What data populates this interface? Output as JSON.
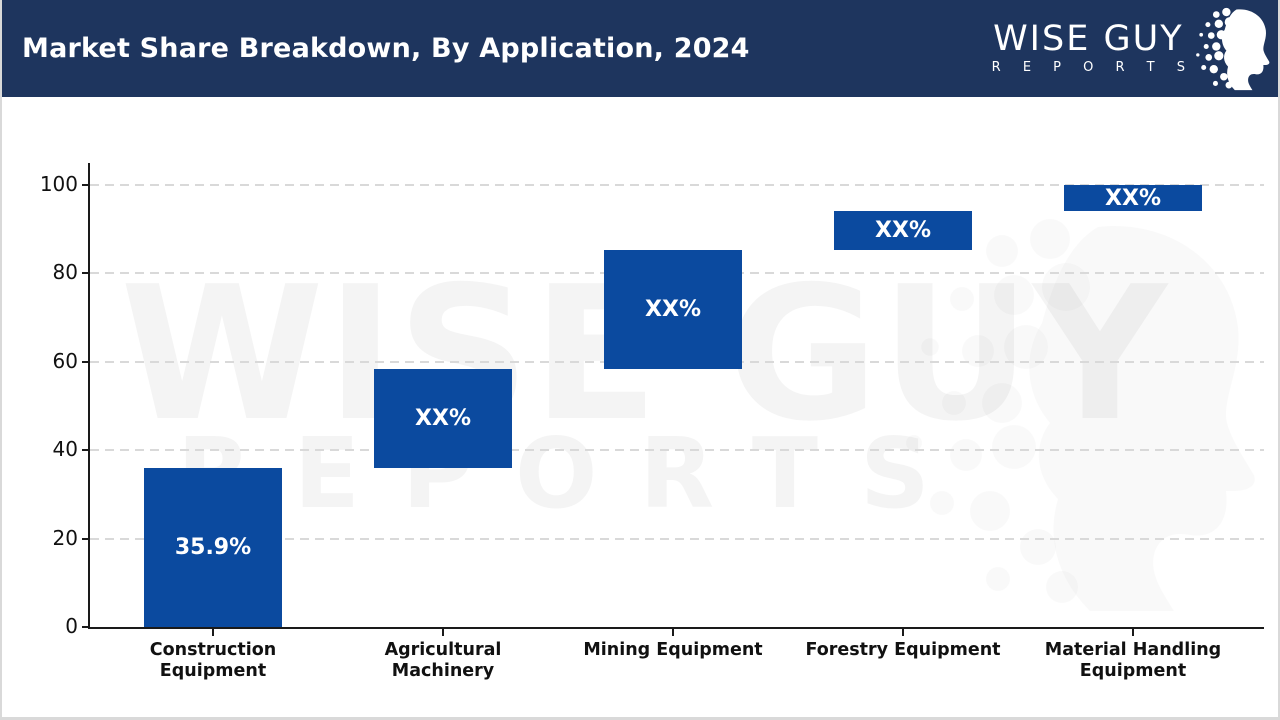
{
  "header": {
    "title": "Market Share Breakdown, By Application, 2024",
    "bg_color": "#1e355e",
    "logo": {
      "line1": "WISE GUY",
      "line2": "R E P O R T S"
    }
  },
  "watermark": {
    "line1": "WISE GUY",
    "line2": "REPORTS"
  },
  "chart_data": {
    "type": "bar",
    "subtype": "waterfall",
    "title": "Market Share Breakdown, By Application, 2024",
    "categories": [
      "Construction Equipment",
      "Agricultural Machinery",
      "Mining Equipment",
      "Forestry Equipment",
      "Material Handling Equipment"
    ],
    "segments": [
      {
        "category": "Construction Equipment",
        "lines": [
          "Construction",
          "Equipment"
        ],
        "start": 0,
        "end": 35.9,
        "value_label": "35.9%"
      },
      {
        "category": "Agricultural Machinery",
        "lines": [
          "Agricultural",
          "Machinery"
        ],
        "start": 35.9,
        "end": 58.4,
        "value_label": "XX%"
      },
      {
        "category": "Mining Equipment",
        "lines": [
          "Mining Equipment"
        ],
        "start": 58.4,
        "end": 85.2,
        "value_label": "XX%"
      },
      {
        "category": "Forestry Equipment",
        "lines": [
          "Forestry Equipment"
        ],
        "start": 85.2,
        "end": 94.1,
        "value_label": "XX%"
      },
      {
        "category": "Material Handling Equipment",
        "lines": [
          "Material Handling",
          "Equipment"
        ],
        "start": 94.1,
        "end": 100,
        "value_label": "XX%"
      }
    ],
    "ylim": [
      0,
      100
    ],
    "yticks": [
      0,
      20,
      40,
      60,
      80,
      100
    ],
    "xlabel": "",
    "ylabel": "",
    "grid": "horizontal-dashed",
    "legend": "none",
    "bar_color": "#0b4a9f",
    "grid_color": "#d9d9d9",
    "axis_color": "#1a1a1a",
    "value_label_color": "#ffffff"
  }
}
